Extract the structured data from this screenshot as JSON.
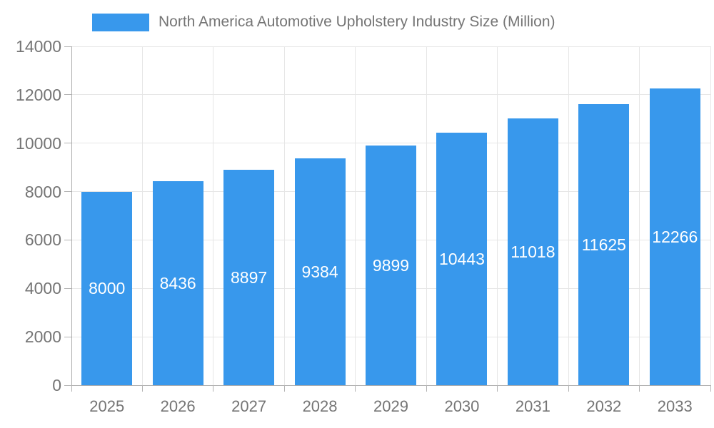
{
  "chart_data": {
    "type": "bar",
    "title": "North America Automotive Upholstery Industry Size (Million)",
    "categories": [
      "2025",
      "2026",
      "2027",
      "2028",
      "2029",
      "2030",
      "2031",
      "2032",
      "2033"
    ],
    "values": [
      8000,
      8436,
      8897,
      9384,
      9899,
      10443,
      11018,
      11625,
      12266
    ],
    "xlabel": "",
    "ylabel": "",
    "ylim": [
      0,
      14000
    ],
    "yticks": [
      0,
      2000,
      4000,
      6000,
      8000,
      10000,
      12000,
      14000
    ],
    "grid": "on",
    "legend_position": "top",
    "colors": {
      "bar": "#3898EC",
      "value_label": "#FFFFFF",
      "axis_text": "#757575",
      "legend_text": "#757575",
      "gridline": "#E6E6E6",
      "axis_line": "#ADADAD",
      "tick": "#B3B3B3",
      "background": "#FFFFFF"
    }
  }
}
